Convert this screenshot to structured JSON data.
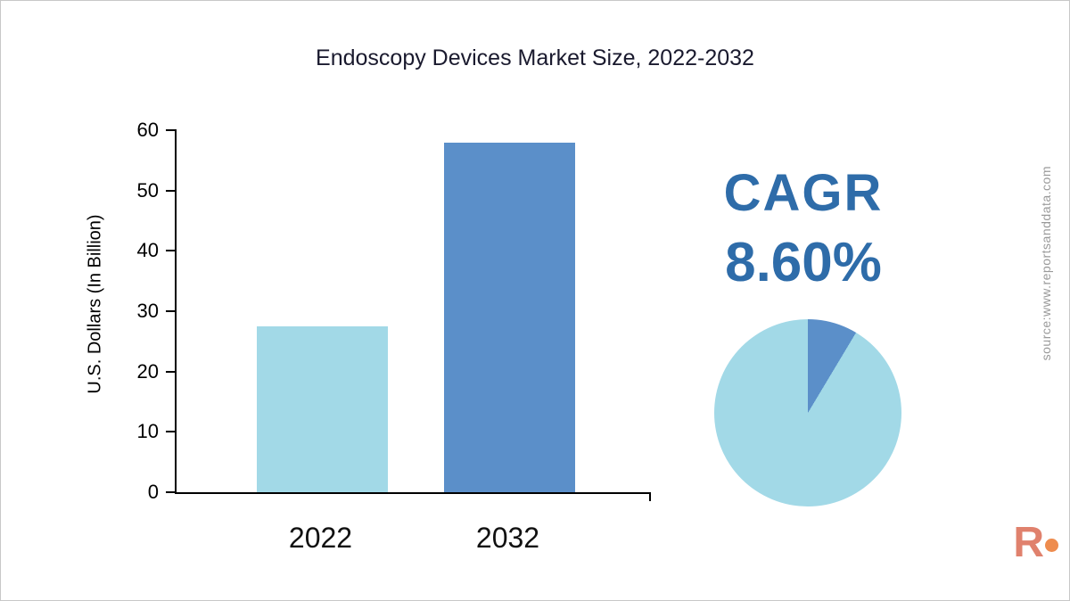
{
  "title": "Endoscopy Devices Market Size, 2022-2032",
  "chart_data": [
    {
      "type": "bar",
      "title": "Endoscopy Devices Market Size, 2022-2032",
      "categories": [
        "2022",
        "2032"
      ],
      "values": [
        27.5,
        58
      ],
      "xlabel": "",
      "ylabel": "U.S. Dollars (In Billion)",
      "ylim": [
        0,
        60
      ],
      "yticks": [
        0,
        10,
        20,
        30,
        40,
        50,
        60
      ],
      "bar_colors": [
        "#a2d9e7",
        "#5b8fc9"
      ],
      "grid": false,
      "legend": false
    },
    {
      "type": "pie",
      "title": "CAGR 8.60%",
      "labels": [
        "CAGR",
        "remainder"
      ],
      "values": [
        8.6,
        91.4
      ],
      "colors": [
        "#5b8fc9",
        "#a2d9e7"
      ],
      "start_angle_deg": 0
    }
  ],
  "cagr": {
    "label": "CAGR",
    "value": "8.60%",
    "percent": 8.6,
    "color": "#2e6ca9"
  },
  "source": "source:www.reportsanddata.com",
  "logo": {
    "letter": "R",
    "color": "#e0816d",
    "dot_color": "#ee8c4e"
  }
}
